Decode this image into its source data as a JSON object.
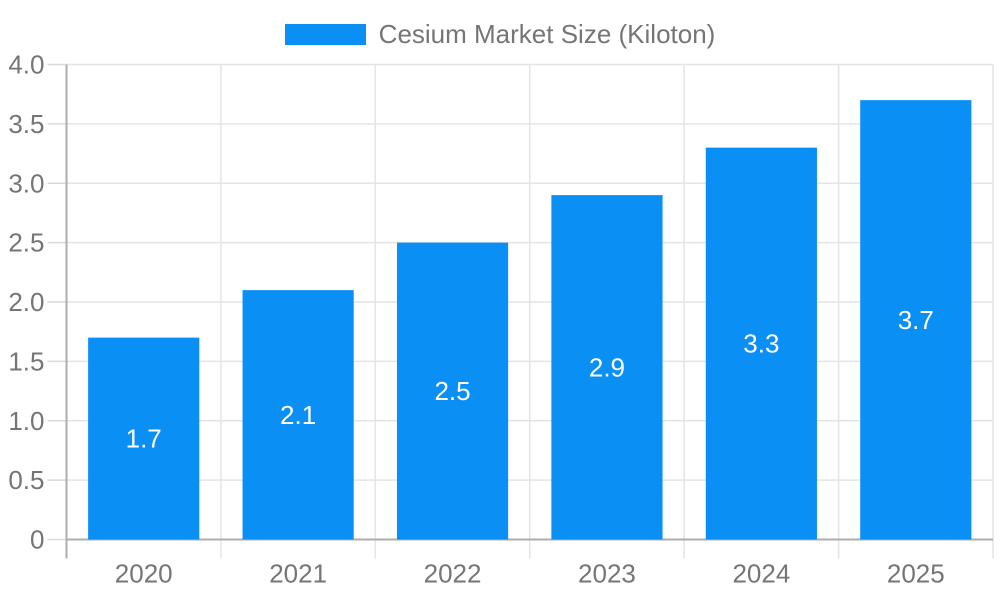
{
  "legend": {
    "label": "Cesium Market Size (Kiloton)",
    "swatch_color": "#0a90f5"
  },
  "chart_data": {
    "type": "bar",
    "title": "Cesium Market Size (Kiloton)",
    "categories": [
      "2020",
      "2021",
      "2022",
      "2023",
      "2024",
      "2025"
    ],
    "series": [
      {
        "name": "Cesium Market Size (Kiloton)",
        "values": [
          1.7,
          2.1,
          2.5,
          2.9,
          3.3,
          3.7
        ]
      }
    ],
    "xlabel": "",
    "ylabel": "",
    "ylim": [
      0,
      4
    ],
    "ytick_step": 0.5,
    "ytick_labels": [
      "0",
      "0.5",
      "1.0",
      "1.5",
      "2.0",
      "2.5",
      "3.0",
      "3.5",
      "4.0"
    ],
    "grid": true,
    "legend_position": "top-center",
    "value_labels_inside_bars": true,
    "colors": {
      "bar": "#0a90f5",
      "value_label": "#ffffff",
      "axis_label": "#757575",
      "axis_line": "#adadad",
      "grid_line": "#e4e4e4",
      "tick_line": "#d9d9d9"
    }
  }
}
